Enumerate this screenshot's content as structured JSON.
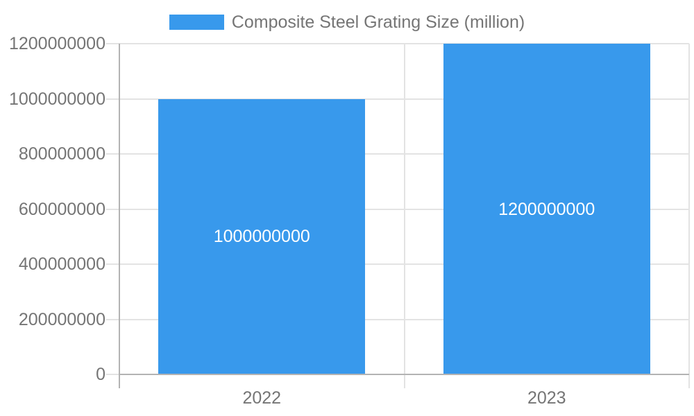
{
  "legend": {
    "label": "Composite Steel Grating Size (million)",
    "position": "top"
  },
  "chart_data": {
    "type": "bar",
    "title": "Composite Steel Grating Size (million)",
    "categories": [
      "2022",
      "2023"
    ],
    "series": [
      {
        "name": "Composite Steel Grating Size (million)",
        "values": [
          1000000000,
          1200000000
        ]
      }
    ],
    "bar_value_labels": [
      "1000000000",
      "1200000000"
    ],
    "xlabel": "",
    "ylabel": "",
    "ylim": [
      0,
      1200000000
    ],
    "yticks": [
      0,
      200000000,
      400000000,
      600000000,
      800000000,
      1000000000,
      1200000000
    ],
    "grid": true,
    "legend_position": "top-center",
    "colors": {
      "bar": "#3899EC",
      "axis": "#B3B3B3",
      "gridline": "#E3E3E3",
      "axis_text": "#757575",
      "title_text": "#757575",
      "bar_label_text": "#FFFFFF",
      "background": "#FFFFFF"
    }
  }
}
